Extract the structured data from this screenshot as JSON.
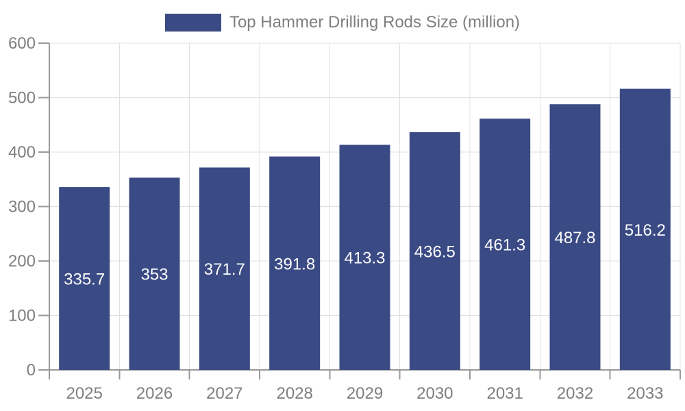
{
  "legend": {
    "label": "Top Hammer Drilling Rods Size (million)",
    "swatch_color": "#3A4A84"
  },
  "chart_data": {
    "type": "bar",
    "title": "",
    "categories": [
      "2025",
      "2026",
      "2027",
      "2028",
      "2029",
      "2030",
      "2031",
      "2032",
      "2033"
    ],
    "series": [
      {
        "name": "Top Hammer Drilling Rods Size (million)",
        "values": [
          335.7,
          353,
          371.7,
          391.8,
          413.3,
          436.5,
          461.3,
          487.8,
          516.2
        ]
      }
    ],
    "value_labels": [
      "335.7",
      "353",
      "371.7",
      "391.8",
      "413.3",
      "436.5",
      "461.3",
      "487.8",
      "516.2"
    ],
    "xlabel": "",
    "ylabel": "",
    "ylim": [
      0,
      600
    ],
    "yticks": [
      0,
      100,
      200,
      300,
      400,
      500,
      600
    ],
    "grid": true,
    "legend_position": "top",
    "styles": {
      "bar_color": "#3A4A84",
      "value_label_color": "#FFFFFF",
      "axis_color": "#999999",
      "grid_color": "#E0E0E0",
      "text_color": "#7F7F7F"
    }
  }
}
